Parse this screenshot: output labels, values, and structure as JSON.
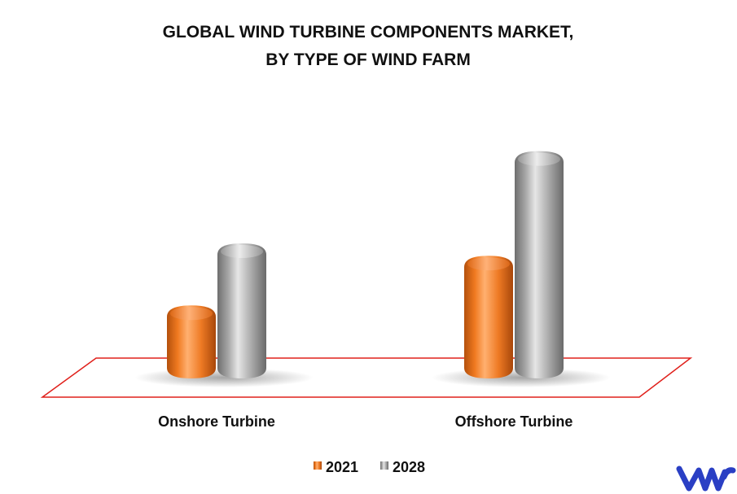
{
  "chart_data": {
    "type": "bar",
    "title_lines": [
      "GLOBAL WIND TURBINE COMPONENTS MARKET,",
      "BY TYPE OF WIND FARM"
    ],
    "categories": [
      "Onshore Turbine",
      "Offshore Turbine"
    ],
    "series": [
      {
        "name": "2021",
        "values": [
          38,
          66
        ],
        "color": "#f07a20"
      },
      {
        "name": "2028",
        "values": [
          73,
          125
        ],
        "color": "#a6a6a6"
      }
    ],
    "ylim": [
      0,
      140
    ],
    "grid": false,
    "legend_position": "bottom-center",
    "floor_color": "#e0201b"
  },
  "logo": {
    "name": "vmr-logo-icon",
    "color": "#2a3fc4"
  }
}
